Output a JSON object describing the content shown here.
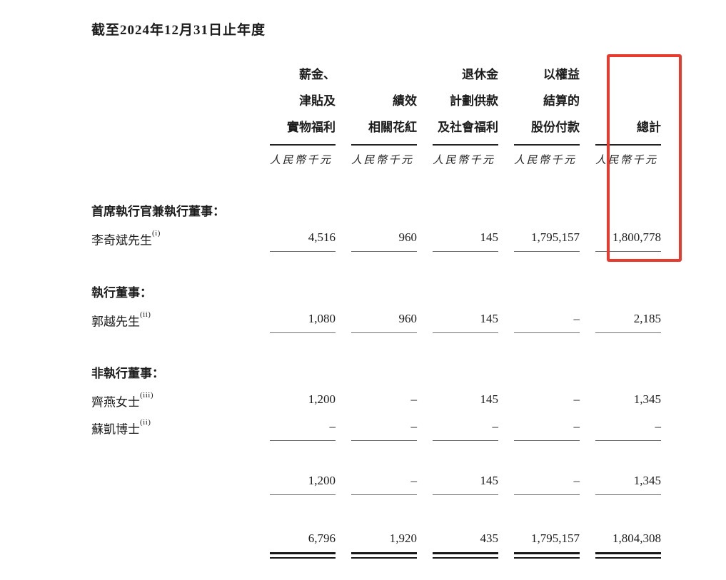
{
  "page": {
    "title": "截至2024年12月31日止年度"
  },
  "table": {
    "columns": [
      {
        "lines": [
          "薪金、",
          "津貼及",
          "實物福利"
        ],
        "unit": "人民幣千元",
        "highlighted": false
      },
      {
        "lines": [
          "績效",
          "相關花紅"
        ],
        "unit": "人民幣千元",
        "highlighted": false
      },
      {
        "lines": [
          "退休金",
          "計劃供款",
          "及社會福利"
        ],
        "unit": "人民幣千元",
        "highlighted": false
      },
      {
        "lines": [
          "以權益",
          "結算的",
          "股份付款"
        ],
        "unit": "人民幣千元",
        "highlighted": true
      },
      {
        "lines": [
          "總計"
        ],
        "unit": "人民幣千元",
        "highlighted": false
      }
    ],
    "sections": [
      {
        "heading": "首席執行官兼執行董事：",
        "rows": [
          {
            "name": "李奇斌先生",
            "sup": "(i)",
            "values": [
              "4,516",
              "960",
              "145",
              "1,795,157",
              "1,800,778"
            ],
            "underline": true
          }
        ]
      },
      {
        "heading": "執行董事：",
        "rows": [
          {
            "name": "郭越先生",
            "sup": "(ii)",
            "values": [
              "1,080",
              "960",
              "145",
              "–",
              "2,185"
            ],
            "underline": true
          }
        ]
      },
      {
        "heading": "非執行董事：",
        "rows": [
          {
            "name": "齊燕女士",
            "sup": "(iii)",
            "values": [
              "1,200",
              "–",
              "145",
              "–",
              "1,345"
            ],
            "underline": false
          },
          {
            "name": "蘇凱博士",
            "sup": "(ii)",
            "values": [
              "–",
              "–",
              "–",
              "–",
              "–"
            ],
            "underline": true
          }
        ]
      }
    ],
    "subtotal": {
      "values": [
        "1,200",
        "–",
        "145",
        "–",
        "1,345"
      ]
    },
    "total": {
      "values": [
        "6,796",
        "1,920",
        "435",
        "1,795,157",
        "1,804,308"
      ]
    }
  },
  "annotation": {
    "highlight_color": "#e83a2d"
  }
}
